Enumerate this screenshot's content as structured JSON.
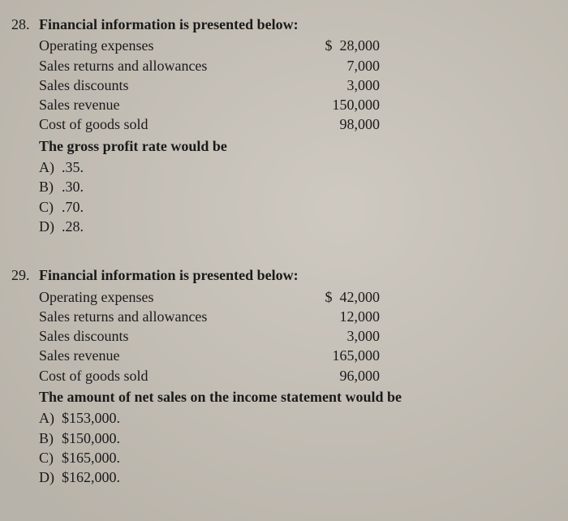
{
  "q28": {
    "number": "28.",
    "intro": "Financial information is presented below:",
    "rows": [
      {
        "label": "Operating expenses",
        "currency": "$",
        "value": "28,000"
      },
      {
        "label": "Sales returns and allowances",
        "currency": "",
        "value": "7,000"
      },
      {
        "label": "Sales discounts",
        "currency": "",
        "value": "3,000"
      },
      {
        "label": "Sales revenue",
        "currency": "",
        "value": "150,000"
      },
      {
        "label": "Cost of goods sold",
        "currency": "",
        "value": "98,000"
      }
    ],
    "prompt": "The gross profit rate would be",
    "choices": [
      {
        "letter": "A)",
        "text": ".35."
      },
      {
        "letter": "B)",
        "text": ".30."
      },
      {
        "letter": "C)",
        "text": ".70."
      },
      {
        "letter": "D)",
        "text": ".28."
      }
    ]
  },
  "q29": {
    "number": "29.",
    "intro": "Financial information is presented below:",
    "rows": [
      {
        "label": "Operating expenses",
        "currency": "$",
        "value": "42,000"
      },
      {
        "label": "Sales returns and allowances",
        "currency": "",
        "value": "12,000"
      },
      {
        "label": "Sales discounts",
        "currency": "",
        "value": "3,000"
      },
      {
        "label": "Sales revenue",
        "currency": "",
        "value": "165,000"
      },
      {
        "label": "Cost of goods sold",
        "currency": "",
        "value": "96,000"
      }
    ],
    "prompt": "The amount of net sales on the income statement would be",
    "choices": [
      {
        "letter": "A)",
        "text": "$153,000."
      },
      {
        "letter": "B)",
        "text": "$150,000."
      },
      {
        "letter": "C)",
        "text": "$165,000."
      },
      {
        "letter": "D)",
        "text": "$162,000."
      }
    ]
  }
}
